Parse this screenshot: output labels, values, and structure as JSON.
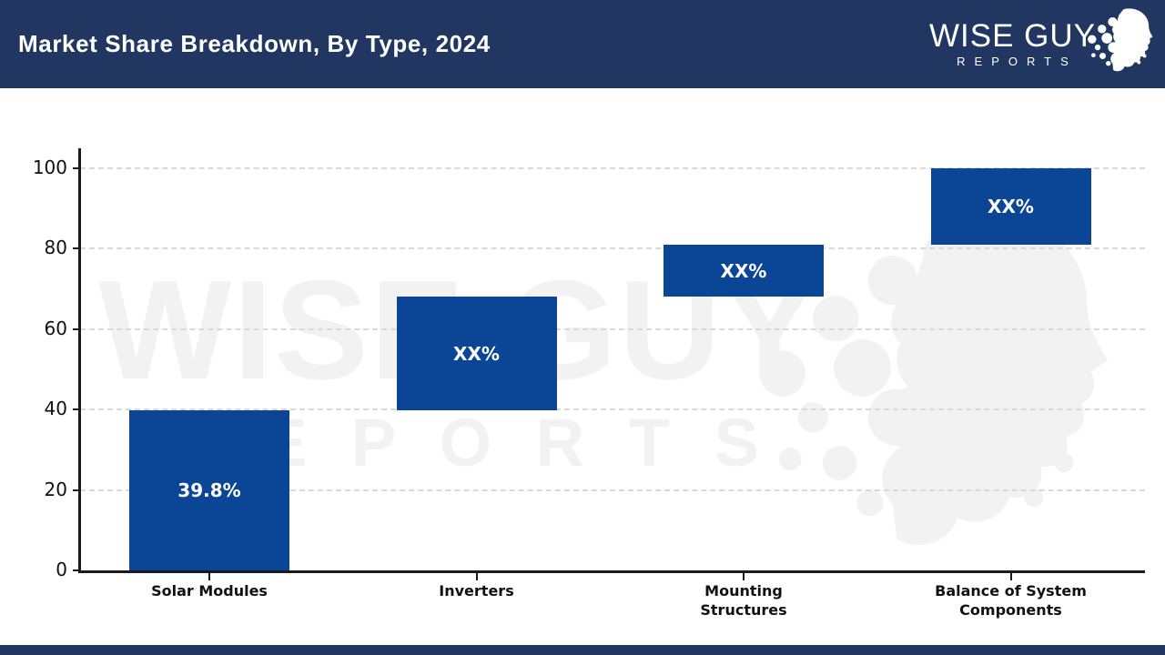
{
  "header": {
    "title": "Market Share Breakdown, By Type, 2024",
    "logo": {
      "line1": "WISE GUY",
      "line2": "REPORTS"
    }
  },
  "watermark": {
    "line1": "WISE GUY",
    "line2": "R E P O R T S"
  },
  "colors": {
    "header_bg": "#213661",
    "bar_blue": "#0b4595",
    "watermark_gray": "#f2f2f2",
    "gridline_gray": "#d9d9d9",
    "axis_black": "#1a1a1a",
    "bar_label_white": "#ffffff"
  },
  "chart_data": {
    "type": "bar",
    "subtype": "waterfall",
    "title": "Market Share Breakdown, By Type, 2024",
    "categories": [
      "Solar Modules",
      "Inverters",
      "Mounting\nStructures",
      "Balance of System\nComponents"
    ],
    "segments": [
      {
        "category": "Solar Modules",
        "start": 0,
        "end": 39.8,
        "label": "39.8%"
      },
      {
        "category": "Inverters",
        "start": 39.8,
        "end": 68,
        "label": "XX%"
      },
      {
        "category": "Mounting Structures",
        "start": 68,
        "end": 81,
        "label": "XX%"
      },
      {
        "category": "Balance of System Components",
        "start": 81,
        "end": 100,
        "label": "XX%"
      }
    ],
    "ylim": [
      0,
      105
    ],
    "yticks": [
      0,
      20,
      40,
      60,
      80,
      100
    ],
    "grid": "horizontal-dashed",
    "legend": "none"
  }
}
